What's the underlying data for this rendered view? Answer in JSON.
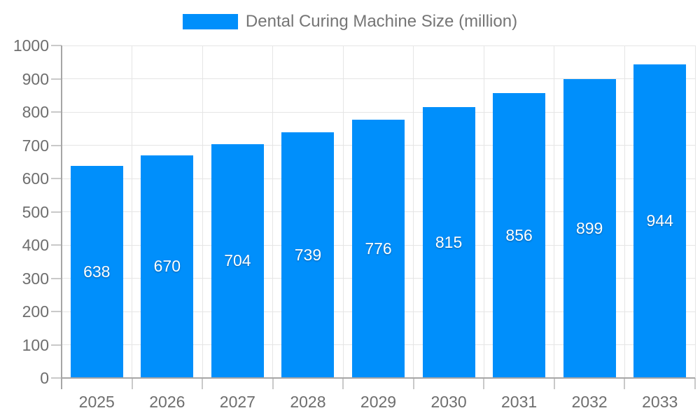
{
  "legend": {
    "label": "Dental Curing Machine Size (million)",
    "swatch_color": "#008FFB"
  },
  "chart_data": {
    "type": "bar",
    "title": "Dental Curing Machine Size (million)",
    "categories": [
      "2025",
      "2026",
      "2027",
      "2028",
      "2029",
      "2030",
      "2031",
      "2032",
      "2033"
    ],
    "series": [
      {
        "name": "Dental Curing Machine Size (million)",
        "values": [
          638,
          670,
          704,
          739,
          776,
          815,
          856,
          899,
          944
        ]
      }
    ],
    "xlabel": "",
    "ylabel": "",
    "ylim": [
      0,
      1000
    ],
    "yticks": [
      0,
      100,
      200,
      300,
      400,
      500,
      600,
      700,
      800,
      900,
      1000
    ],
    "grid": true,
    "legend_position": "top",
    "colors": {
      "bar": "#008FFB",
      "gridline": "#e5e5e5",
      "tick": "#c9c9c9",
      "axis_line": "#a6a6a6",
      "axis_label": "#6e6e6e",
      "legend_label": "#757575",
      "data_label": "#ffffff",
      "background": "#ffffff"
    }
  }
}
